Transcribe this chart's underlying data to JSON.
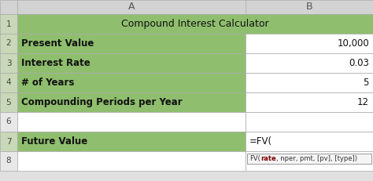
{
  "rows": [
    {
      "row": 1,
      "col_a": "Compound Interest Calculator",
      "col_b": "",
      "a_align": "center",
      "b_align": "right",
      "a_green": true,
      "b_green": true,
      "a_bold": false,
      "b_bold": false,
      "span": true
    },
    {
      "row": 2,
      "col_a": "Present Value",
      "col_b": "10,000",
      "a_align": "left",
      "b_align": "right",
      "a_green": true,
      "b_green": false,
      "a_bold": true,
      "b_bold": false,
      "span": false
    },
    {
      "row": 3,
      "col_a": "Interest Rate",
      "col_b": "0.03",
      "a_align": "left",
      "b_align": "right",
      "a_green": true,
      "b_green": false,
      "a_bold": true,
      "b_bold": false,
      "span": false
    },
    {
      "row": 4,
      "col_a": "# of Years",
      "col_b": "5",
      "a_align": "left",
      "b_align": "right",
      "a_green": true,
      "b_green": false,
      "a_bold": true,
      "b_bold": false,
      "span": false
    },
    {
      "row": 5,
      "col_a": "Compounding Periods per Year",
      "col_b": "12",
      "a_align": "left",
      "b_align": "right",
      "a_green": true,
      "b_green": false,
      "a_bold": true,
      "b_bold": false,
      "span": false
    },
    {
      "row": 6,
      "col_a": "",
      "col_b": "",
      "a_align": "left",
      "b_align": "right",
      "a_green": false,
      "b_green": false,
      "a_bold": false,
      "b_bold": false,
      "span": false
    },
    {
      "row": 7,
      "col_a": "Future Value",
      "col_b": "=FV(",
      "a_align": "left",
      "b_align": "left",
      "a_green": true,
      "b_green": false,
      "a_bold": true,
      "b_bold": false,
      "span": false
    },
    {
      "row": 8,
      "col_a": "",
      "col_b": "",
      "a_align": "left",
      "b_align": "right",
      "a_green": false,
      "b_green": false,
      "a_bold": false,
      "b_bold": false,
      "span": false
    }
  ],
  "col_header_a": "A",
  "col_header_b": "B",
  "green_color": "#8FBF6E",
  "white_color": "#FFFFFF",
  "header_bg": "#D3D3D3",
  "grid_color": "#AAAAAA",
  "row_num_bg": "#E8E8E8",
  "row_num_selected_bg": "#C8D8B8",
  "fv_bold_color": "#7B0000",
  "tooltip_bg": "#F5F5F5",
  "tooltip_border": "#999999",
  "fig_bg": "#E0E0E0"
}
